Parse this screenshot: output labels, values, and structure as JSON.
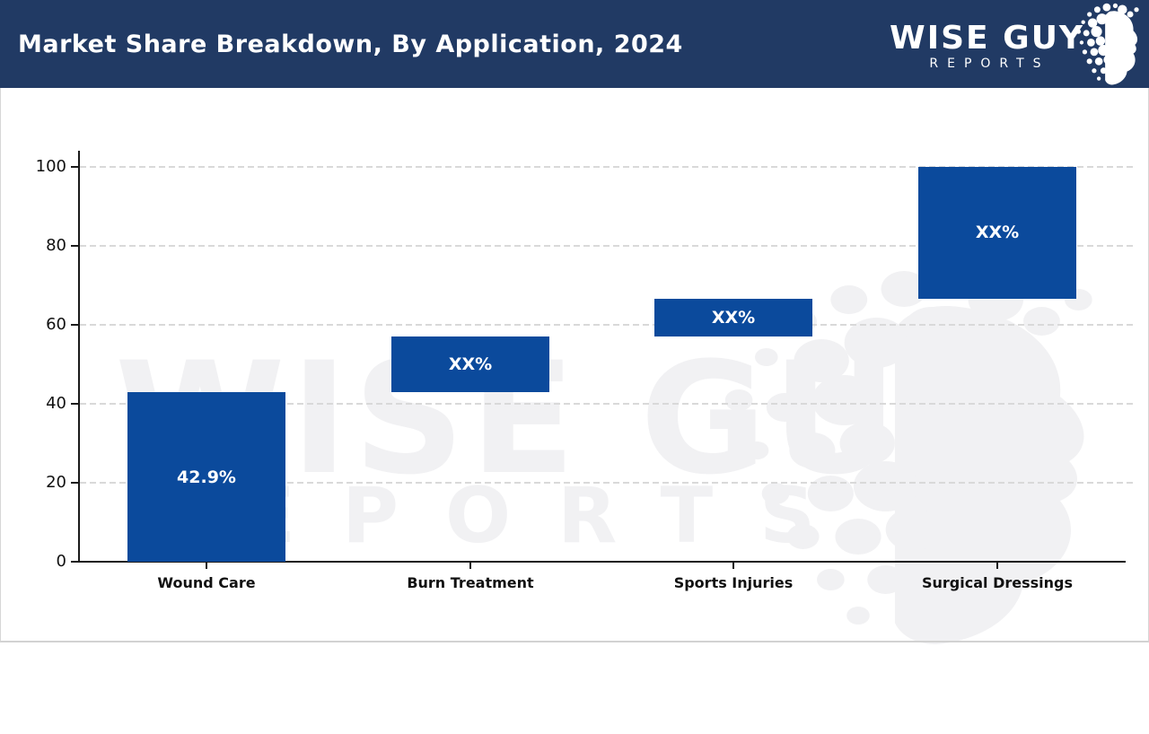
{
  "header": {
    "title": "Market Share Breakdown, By Application, 2024",
    "brand": {
      "name": "WISE GUY",
      "sub": "REPORTS"
    },
    "colors": {
      "header_bg": "#213a64",
      "title_text": "#ffffff"
    }
  },
  "watermark": {
    "line1": "WISE GUY",
    "line2": "REPORTS"
  },
  "chart_data": {
    "type": "bar",
    "subtype": "floating-segment (waterfall-style) market share bars",
    "title": "Market Share Breakdown, By Application, 2024",
    "categories": [
      "Wound Care",
      "Burn Treatment",
      "Sports Injuries",
      "Surgical Dressings"
    ],
    "segments": [
      {
        "category": "Wound Care",
        "start": 0,
        "end": 42.9,
        "label": "42.9%"
      },
      {
        "category": "Burn Treatment",
        "start": 42.9,
        "end": 57.1,
        "label": "XX%"
      },
      {
        "category": "Sports Injuries",
        "start": 57.1,
        "end": 66.7,
        "label": "XX%"
      },
      {
        "category": "Surgical Dressings",
        "start": 66.7,
        "end": 100,
        "label": "XX%"
      }
    ],
    "y_ticks": [
      0,
      20,
      40,
      60,
      80,
      100
    ],
    "ylim": [
      0,
      105
    ],
    "xlabel": "",
    "ylabel": "",
    "grid": "horizontal dashed",
    "legend": "none",
    "bar_color": "#0b4a9c",
    "bar_label_color": "#ffffff",
    "axis_color": "#1a1a1a",
    "gridline_color": "#d9d9d9"
  }
}
